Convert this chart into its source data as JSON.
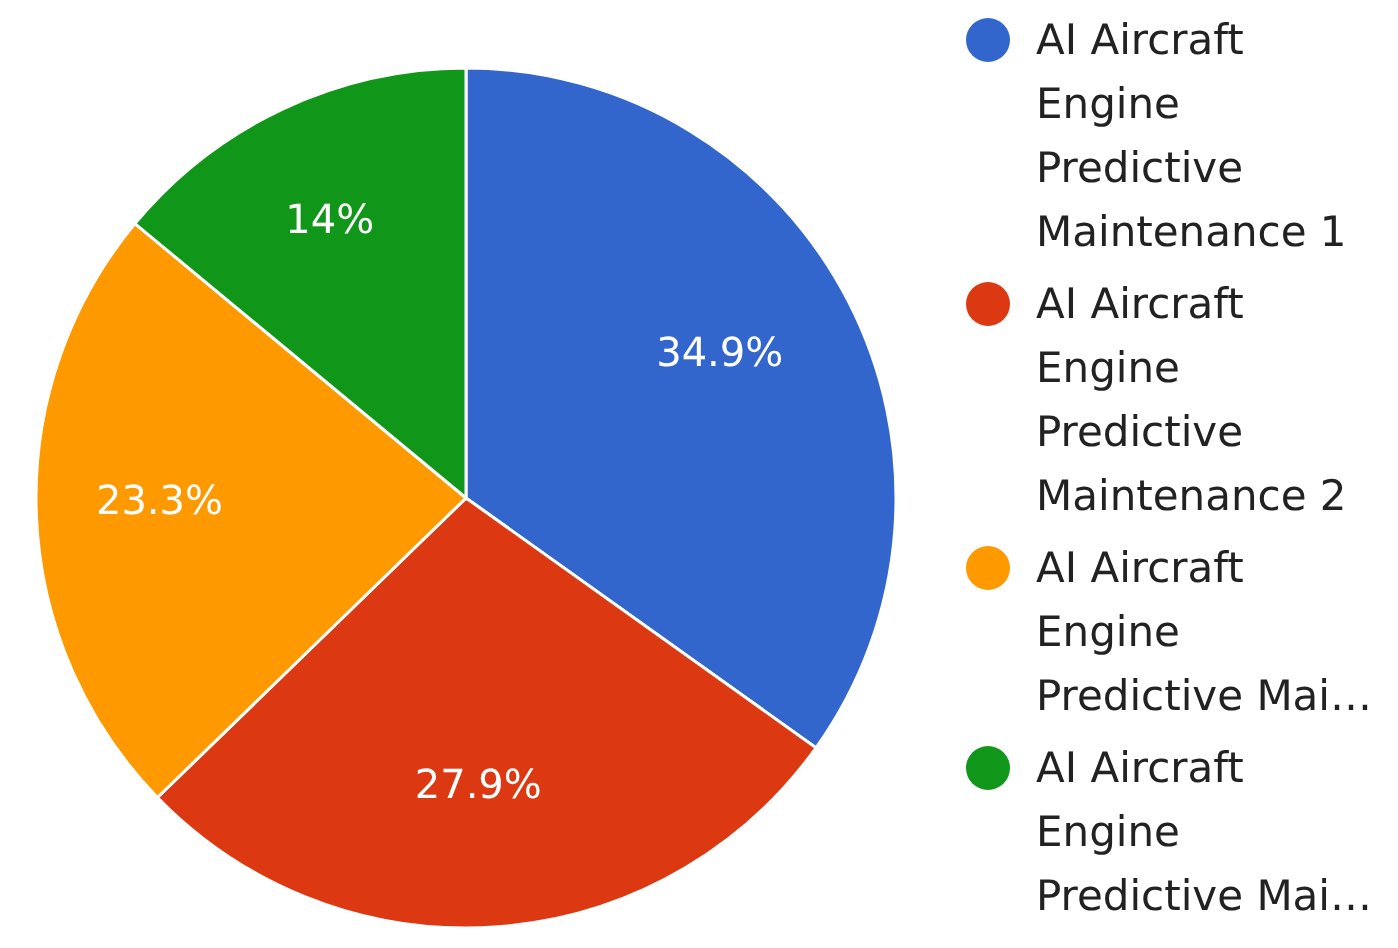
{
  "chart_data": {
    "type": "pie",
    "categories": [
      "AI Aircraft Engine Predictive Maintenance 1",
      "AI Aircraft Engine Predictive Maintenance 2",
      "AI Aircraft Engine Predictive Mai…",
      "AI Aircraft Engine Predictive Mai…"
    ],
    "values": [
      34.9,
      27.9,
      23.3,
      14
    ],
    "colors": [
      "#3366cc",
      "#dc3912",
      "#ff9900",
      "#109618"
    ],
    "value_labels": [
      "34.9%",
      "27.9%",
      "23.3%",
      "14%"
    ],
    "legend": "right"
  }
}
